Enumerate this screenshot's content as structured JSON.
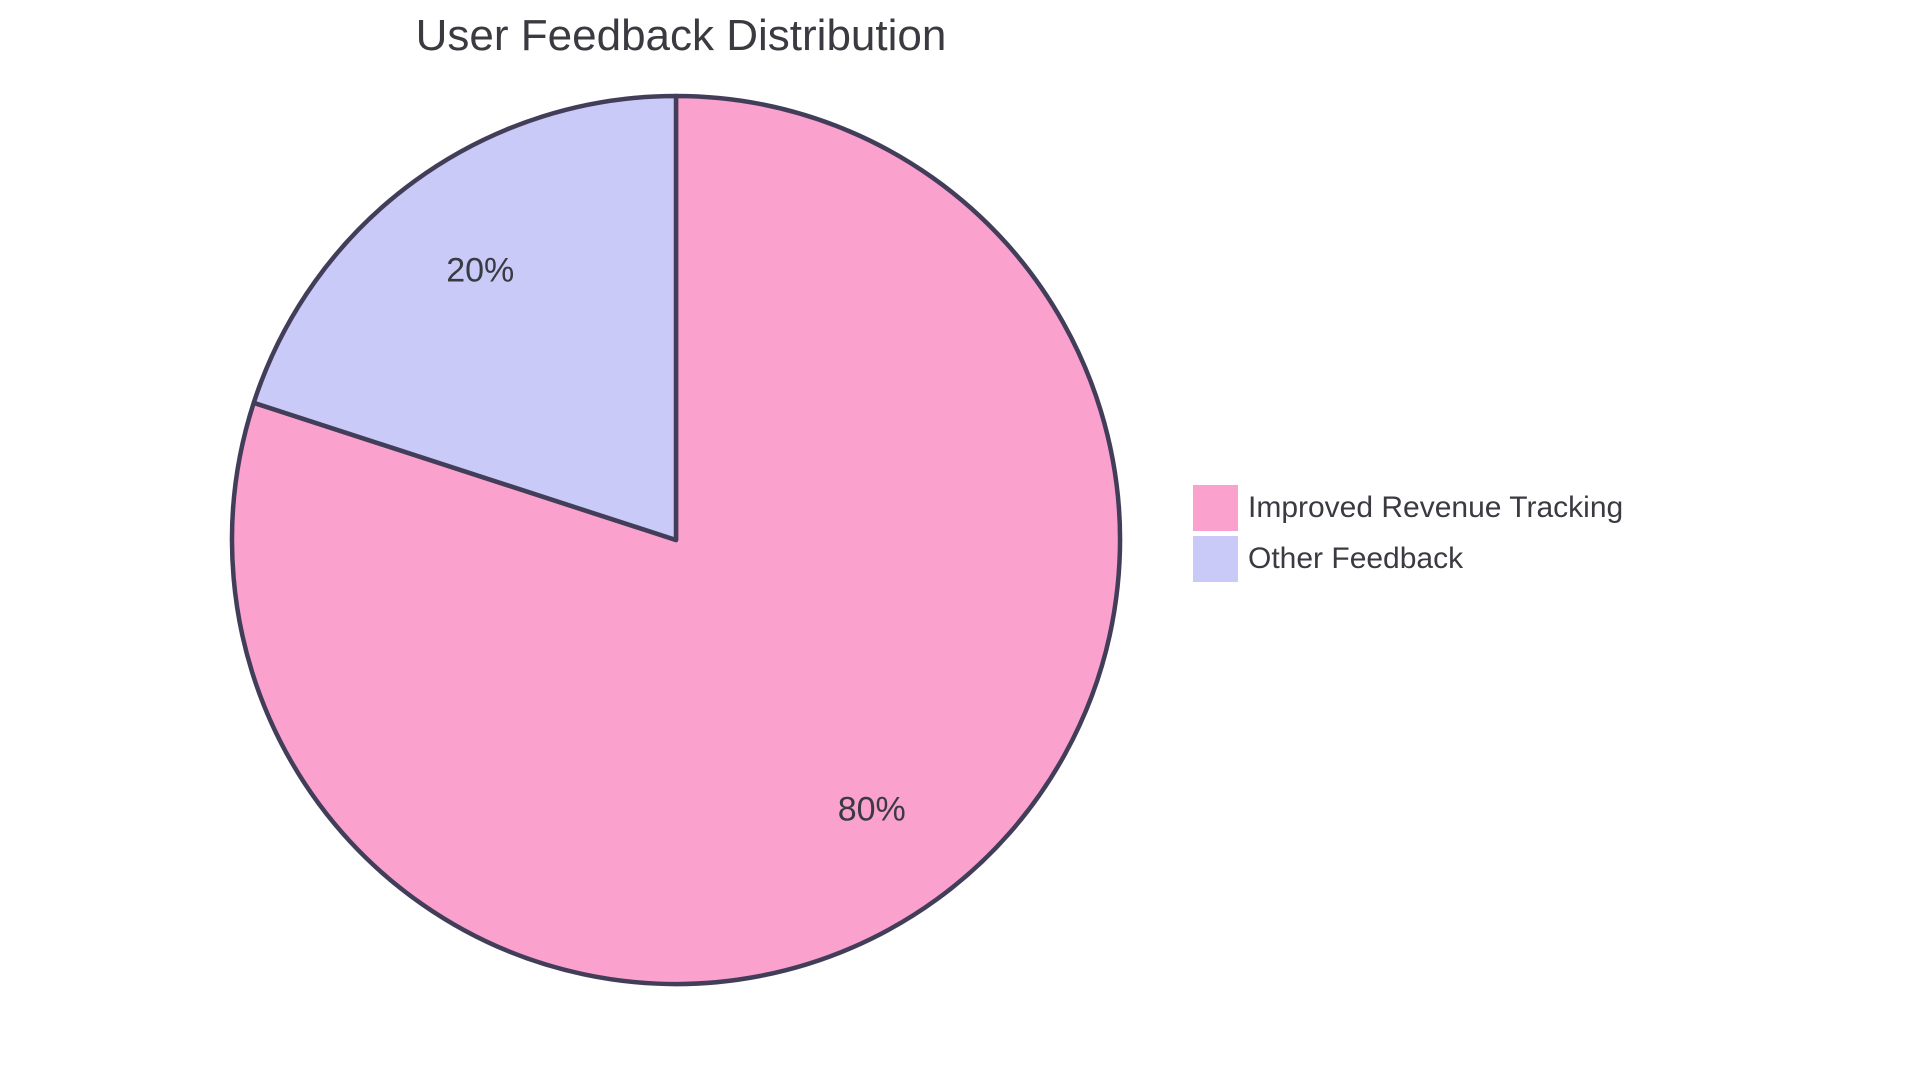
{
  "page": {
    "background": "#FFFFFF"
  },
  "chart_data": {
    "type": "pie",
    "title": "User Feedback Distribution",
    "slices": [
      {
        "label": "Improved Revenue Tracking",
        "value": 80,
        "percent_label": "80%",
        "color": "#FBA1CE"
      },
      {
        "label": "Other Feedback",
        "value": 20,
        "percent_label": "20%",
        "color": "#C9CAF7"
      }
    ],
    "start_angle_deg": -90,
    "direction": "clockwise",
    "slice_border_color": "#423E5A",
    "slice_border_width": 4.5,
    "slice_label_color": "#3A3A42",
    "label_radius_factor": 0.75,
    "title_color": "#3A3A40",
    "legend_position": "right",
    "background": "#FFFFFF"
  }
}
